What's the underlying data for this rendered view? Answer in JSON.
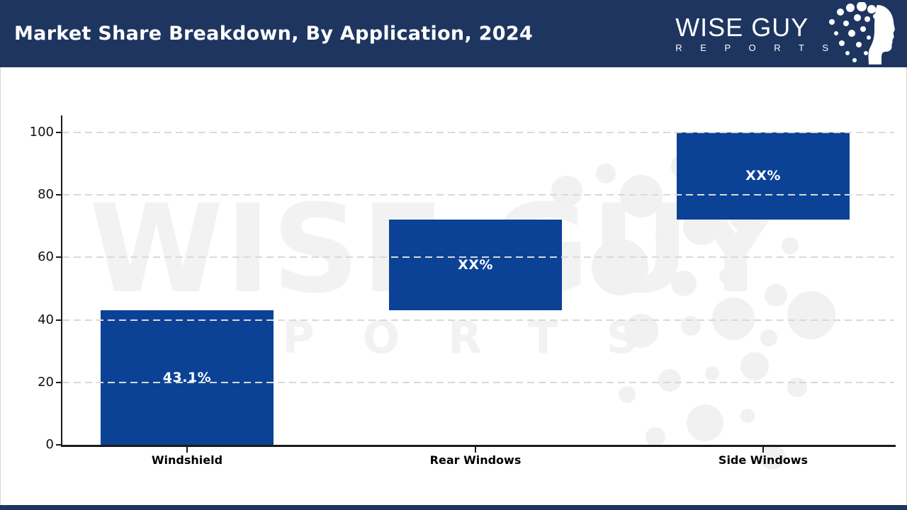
{
  "header": {
    "title": "Market Share Breakdown, By Application, 2024",
    "bg_color": "#1e3560",
    "logo": {
      "line1": "WISE GUY",
      "line2": "R E P O R T S"
    }
  },
  "watermark": {
    "line1": "WISE GUY",
    "line2": "REPORTS"
  },
  "chart_data": {
    "type": "bar",
    "subtype": "waterfall-market-share",
    "title": "Market Share Breakdown, By Application, 2024",
    "xlabel": "",
    "ylabel": "",
    "categories": [
      "Windshield",
      "Rear Windows",
      "Side Windows"
    ],
    "segments": [
      {
        "category": "Windshield",
        "start": 0,
        "end": 43.1,
        "label": "43.1%"
      },
      {
        "category": "Rear Windows",
        "start": 43.1,
        "end": 72.2,
        "label": "XX%"
      },
      {
        "category": "Side Windows",
        "start": 72.2,
        "end": 100,
        "label": "XX%"
      }
    ],
    "yticks": [
      0,
      20,
      40,
      60,
      80,
      100
    ],
    "ylim": [
      0,
      105.5
    ],
    "bar_color": "#0b4296",
    "bar_label_color": "#ffffff",
    "grid": "dashed",
    "grid_color": "#d9d9d9",
    "legend": "none"
  },
  "footer": {
    "bg_color": "#1e3560"
  }
}
